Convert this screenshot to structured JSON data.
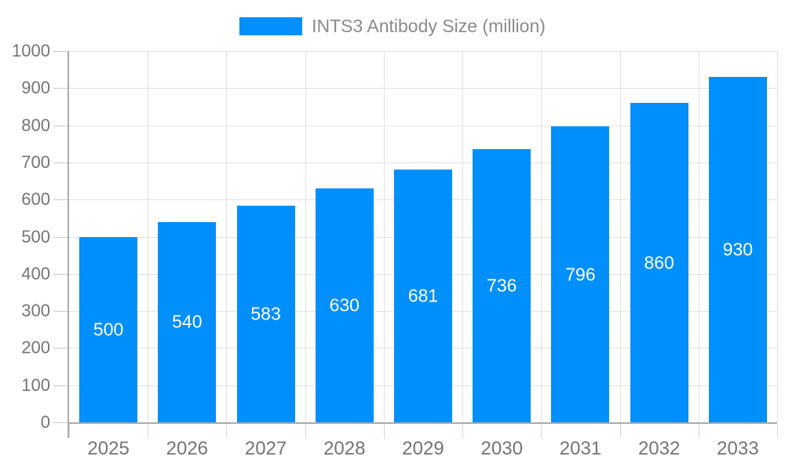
{
  "chart_data": {
    "type": "bar",
    "title": "INTS3 Antibody Size (million)",
    "categories": [
      "2025",
      "2026",
      "2027",
      "2028",
      "2029",
      "2030",
      "2031",
      "2032",
      "2033"
    ],
    "values": [
      500,
      540,
      583,
      630,
      681,
      736,
      796,
      860,
      930
    ],
    "xlabel": "",
    "ylabel": "",
    "ylim": [
      0,
      1000
    ],
    "ytick_step": 100,
    "grid": true,
    "legend_position": "top",
    "colors": {
      "bar": "#008FFB",
      "value_label": "#ffffff",
      "axis_text": "#757575",
      "legend_text": "#8b8b8b",
      "gridline": "#e2e2e2",
      "axis_line": "#ababab"
    }
  }
}
